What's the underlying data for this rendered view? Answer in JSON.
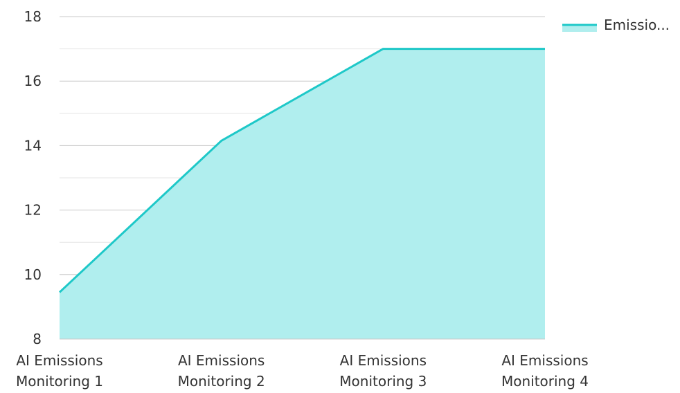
{
  "chart_data": {
    "type": "area",
    "categories": [
      [
        "AI Emissions",
        "Monitoring 1"
      ],
      [
        "AI Emissions",
        "Monitoring 2"
      ],
      [
        "AI Emissions",
        "Monitoring 3"
      ],
      [
        "AI Emissions",
        "Monitoring 4"
      ]
    ],
    "series": [
      {
        "name": "Emissio...",
        "values": [
          9.45,
          14.15,
          17.0,
          17.0
        ]
      }
    ],
    "ylim": [
      8,
      18
    ],
    "yticks": [
      "8",
      "10",
      "12",
      "14",
      "16",
      "18"
    ],
    "grid": true,
    "legend": "top-right",
    "colors": {
      "line": "#1ec8c8",
      "fill": "#b0eeee",
      "grid_major": "#c8c8c8",
      "grid_minor": "#e6e6e6"
    }
  }
}
